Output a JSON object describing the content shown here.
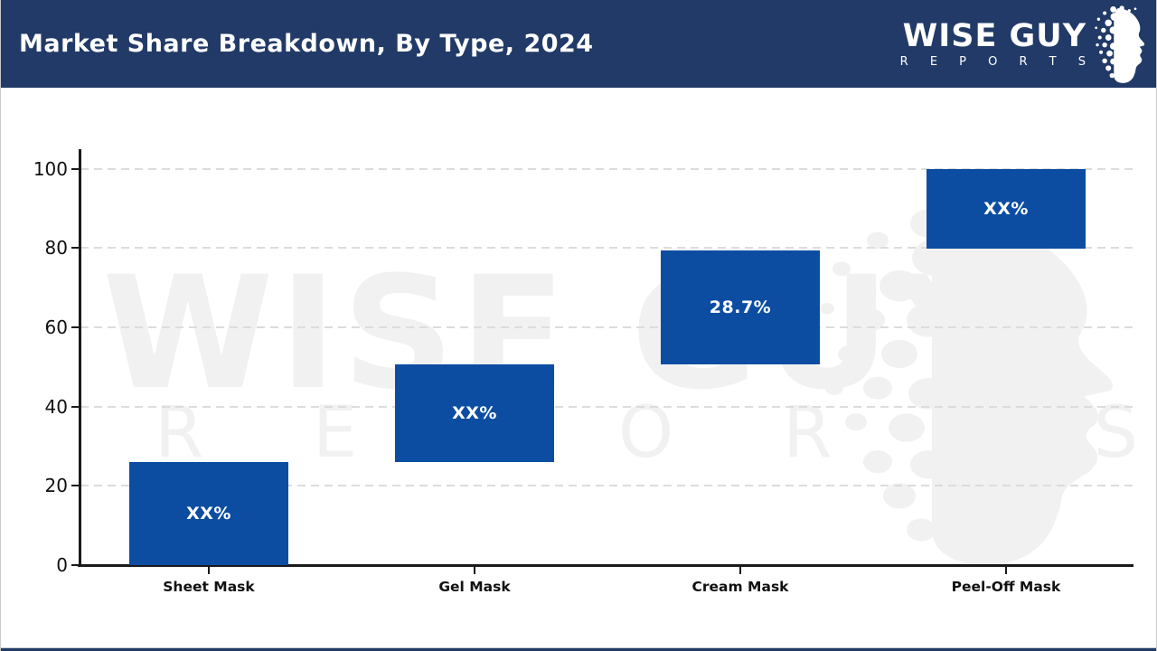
{
  "header": {
    "title": "Market Share Breakdown, By Type, 2024",
    "logo": {
      "wordmark": "WISE GUY",
      "subtitle": "R E P O R T S"
    }
  },
  "watermark": {
    "line1": "WISE GUY",
    "line2": "R E P O R T S"
  },
  "colors": {
    "header_bg": "#213a67",
    "bar": "#0c4da2",
    "gridline": "#dcdcdc",
    "watermark": "#f1f1f1"
  },
  "chart_data": {
    "type": "bar",
    "subtype": "floating-waterfall",
    "title": "Market Share Breakdown, By Type, 2024",
    "categories": [
      "Sheet Mask",
      "Gel Mask",
      "Cream Mask",
      "Peel-Off Mask"
    ],
    "ranges": [
      {
        "category": "Sheet Mask",
        "start": 0,
        "end": 26,
        "label": "XX%"
      },
      {
        "category": "Gel Mask",
        "start": 26,
        "end": 50.7,
        "label": "XX%"
      },
      {
        "category": "Cream Mask",
        "start": 50.7,
        "end": 79.4,
        "label": "28.7%"
      },
      {
        "category": "Peel-Off Mask",
        "start": 79.8,
        "end": 100,
        "label": "XX%"
      }
    ],
    "xlabel": "",
    "ylabel": "",
    "ylim": [
      0,
      100
    ],
    "yticks": [
      0,
      20,
      40,
      60,
      80,
      100
    ],
    "grid": "horizontal-dashed",
    "legend": "none"
  }
}
